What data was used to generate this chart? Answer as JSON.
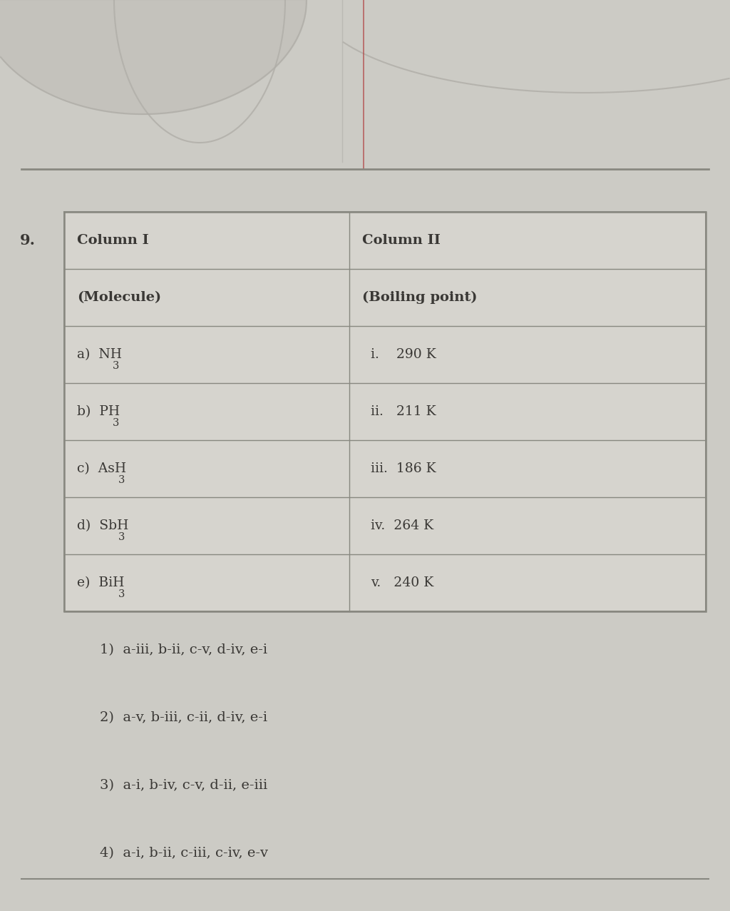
{
  "question_number": "9.",
  "col1_header1": "Column I",
  "col1_header2": "(Molecule)",
  "col2_header1": "Column II",
  "col2_header2": "(Boiling point)",
  "col1_molecules": [
    [
      "a)  NH",
      "3"
    ],
    [
      "b)  PH",
      "3"
    ],
    [
      "c)  AsH",
      "3"
    ],
    [
      "d)  SbH",
      "3"
    ],
    [
      "e)  BiH",
      "3"
    ]
  ],
  "col2_boiling": [
    "i.    290 K",
    "ii.   211 K",
    "iii.  186 K",
    "iv.  264 K",
    "v.   240 K"
  ],
  "options": [
    "1)  a-iii, b-ii, c-v, d-iv, e-i",
    "2)  a-v, b-iii, c-ii, d-iv, e-i",
    "3)  a-i, b-iv, c-v, d-ii, e-iii",
    "4)  a-i, b-ii, c-iii, c-iv, e-v"
  ],
  "page_bg": "#cccbc5",
  "table_bg": "#d6d4ce",
  "table_border": "#888880",
  "text_color": "#3a3835",
  "line_color": "#888880",
  "red_line": "#b04040",
  "arc_color": "#b0aea8",
  "header_fontsize": 14,
  "body_fontsize": 13.5,
  "option_fontsize": 14,
  "qnum_fontsize": 15
}
